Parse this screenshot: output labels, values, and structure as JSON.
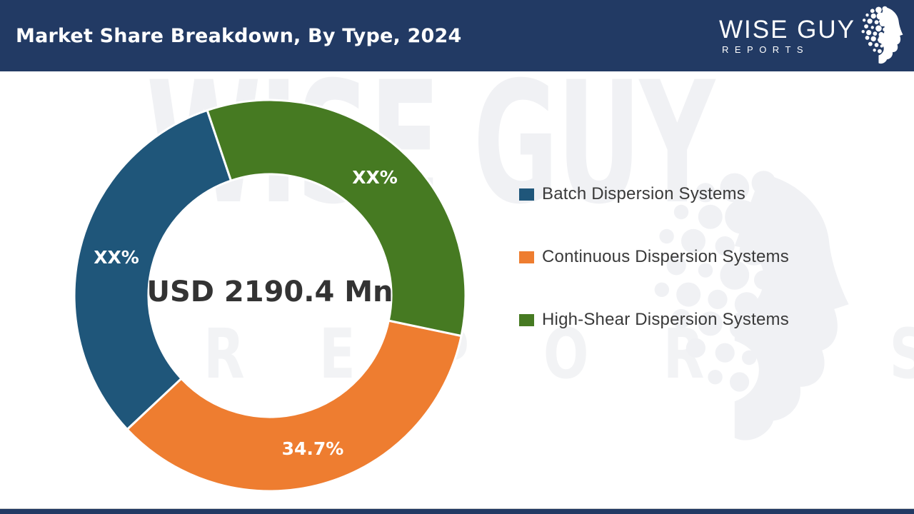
{
  "header": {
    "title": "Market Share Breakdown, By Type, 2024",
    "brand": {
      "line1": "WISE GUY",
      "line2": "REPORTS"
    }
  },
  "watermark": {
    "line1": "WISE GUY",
    "line2": "R E P O R T S"
  },
  "chart_data": {
    "type": "pie",
    "subtype": "donut",
    "title": "Market Share Breakdown, By Type, 2024",
    "center_label": "USD 2190.4 Mn",
    "start_angle_deg": 108.7,
    "direction": "counterclockwise",
    "donut_hole_ratio": 0.62,
    "legend_position": "right",
    "segments": [
      {
        "label": "Batch Dispersion Systems",
        "value_pct": 31.8,
        "display_label": "XX%",
        "color": "#1f567a"
      },
      {
        "label": "Continuous Dispersion Systems",
        "value_pct": 34.7,
        "display_label": "34.7%",
        "color": "#ee7d30"
      },
      {
        "label": "High-Shear Dispersion Systems",
        "value_pct": 33.5,
        "display_label": "XX%",
        "color": "#467a22"
      }
    ]
  },
  "colors": {
    "header_bg": "#223a64",
    "footer_bg": "#223a64",
    "center_text": "#333333",
    "legend_text": "#3a3a3a",
    "watermark": "#f0f1f4"
  }
}
